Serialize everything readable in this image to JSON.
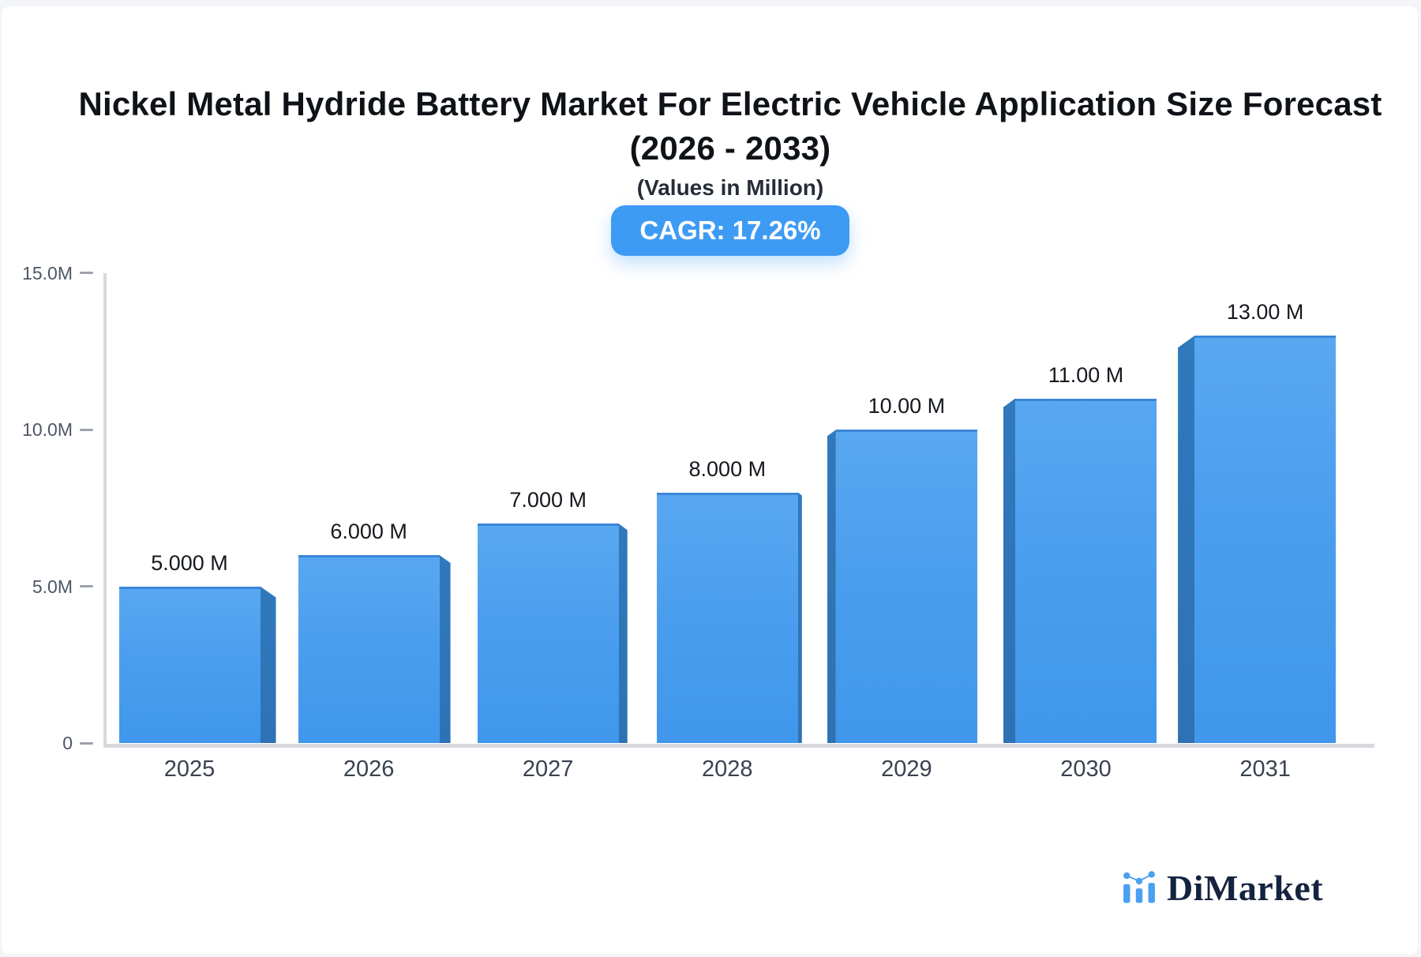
{
  "page": {
    "background_color": "#f3f5f8",
    "card_color": "#ffffff"
  },
  "header": {
    "title_line1": "Nickel Metal Hydride Battery Market For Electric Vehicle Application Size Forecast",
    "title_line2": "(2026 - 2033)",
    "subtitle": "(Values in Million)",
    "cagr_label": "CAGR: 17.26%",
    "badge_color": "#3e9bf4"
  },
  "chart_data": {
    "type": "bar",
    "title": "Nickel Metal Hydride Battery Market For Electric Vehicle Application Size Forecast (2026 - 2033)",
    "subtitle": "(Values in Million)",
    "cagr": "17.26%",
    "categories": [
      "2025",
      "2026",
      "2027",
      "2028",
      "2029",
      "2030",
      "2031"
    ],
    "values": [
      5,
      6,
      7,
      8,
      10,
      11,
      13
    ],
    "value_labels": [
      "5.000 M",
      "6.000 M",
      "7.000 M",
      "8.000 M",
      "10.00 M",
      "11.00 M",
      "13.00 M"
    ],
    "unit": "Million",
    "xlabel": "",
    "ylabel": "",
    "ylim": [
      0,
      15
    ],
    "yticks": {
      "values": [
        0,
        5,
        10,
        15
      ],
      "labels": [
        "0",
        "5.0M",
        "10.0M",
        "15.0M"
      ]
    },
    "grid": false,
    "legend": false,
    "bar_style": {
      "face_top": "#59a7f1",
      "face_bottom": "#4097eb",
      "side": "#2d72b4",
      "top_edge": "#3a86d8",
      "effect": "3d-perspective"
    }
  },
  "footer": {
    "brand": "DiMarket",
    "logo_icon": "bar-chart-logo-icon",
    "logo_color": "#4aa0f2",
    "text_color": "#14233f"
  }
}
